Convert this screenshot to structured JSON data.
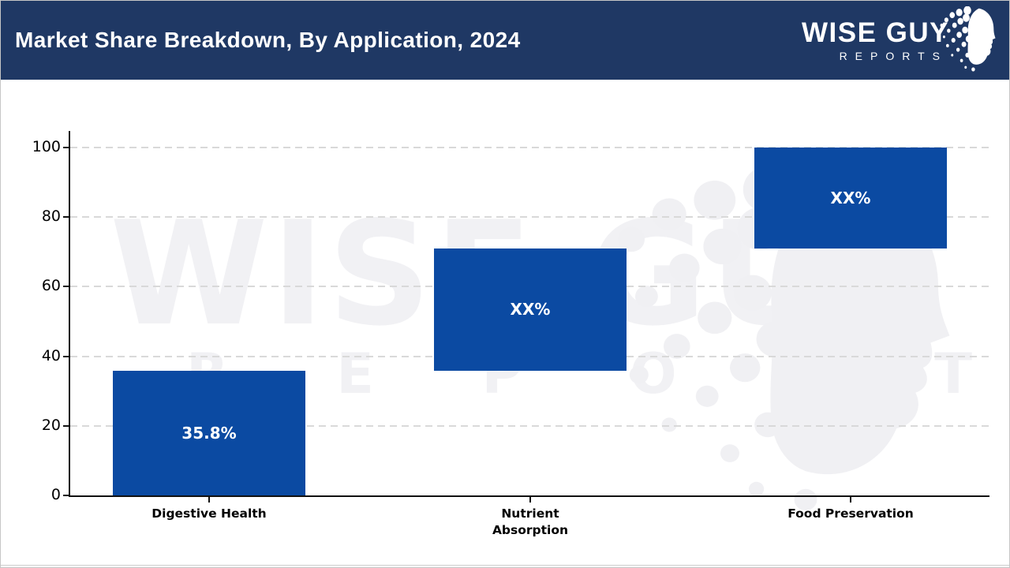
{
  "header": {
    "title": "Market Share Breakdown, By Application, 2024",
    "background": "#1f3864",
    "logo": {
      "line1": "WISE GUY",
      "line2": "REPORTS",
      "mark": "dotted-face-profile-icon"
    }
  },
  "watermark": {
    "line1": "WISE GUY",
    "line2": "R E P O R T S",
    "mark": "dotted-face-profile-icon",
    "color": "#f1f1f4"
  },
  "chart_data": {
    "type": "bar",
    "subtype": "floating-waterfall",
    "title": "Market Share Breakdown, By Application, 2024",
    "categories": [
      "Digestive Health",
      "Nutrient\nAbsorption",
      "Food Preservation"
    ],
    "segments": [
      {
        "category": "Digestive Health",
        "start": 0,
        "end": 35.8,
        "label": "35.8%"
      },
      {
        "category": "Nutrient\nAbsorption",
        "start": 35.8,
        "end": 71,
        "label": "XX%"
      },
      {
        "category": "Food Preservation",
        "start": 71,
        "end": 100,
        "label": "XX%"
      }
    ],
    "y_ticks": [
      0,
      20,
      40,
      60,
      80,
      100
    ],
    "ylim": [
      0,
      105
    ],
    "xlabel": "",
    "ylabel": "",
    "grid": "horizontal-dashed",
    "legend": "none",
    "bar_color": "#0b4aa2",
    "label_color": "#ffffff",
    "gridline_color": "#d9d9d9",
    "axis_color": "#111111"
  }
}
